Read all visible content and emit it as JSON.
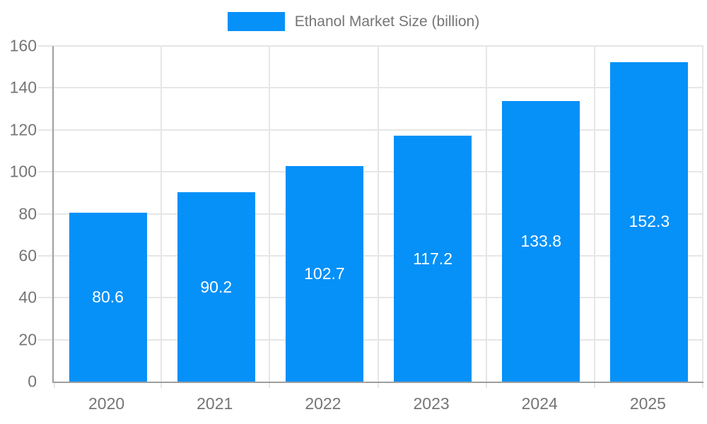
{
  "chart_data": {
    "type": "bar",
    "title": "Ethanol Market Size (billion)",
    "legend_position": "top",
    "categories": [
      "2020",
      "2021",
      "2022",
      "2023",
      "2024",
      "2025"
    ],
    "series": [
      {
        "name": "Ethanol Market Size (billion)",
        "values": [
          80.6,
          90.2,
          102.7,
          117.2,
          133.8,
          152.3
        ]
      }
    ],
    "xlabel": "",
    "ylabel": "",
    "ylim": [
      0,
      160
    ],
    "yticks": [
      0,
      20,
      40,
      60,
      80,
      100,
      120,
      140,
      160
    ],
    "grid": true,
    "value_labels_shown": true,
    "colors": {
      "bar": "#0591f8",
      "value_text": "#ffffff",
      "label_text": "#757575",
      "gridline": "#e6e6e6",
      "axis_line": "#9e9e9e",
      "background": "#ffffff"
    }
  }
}
